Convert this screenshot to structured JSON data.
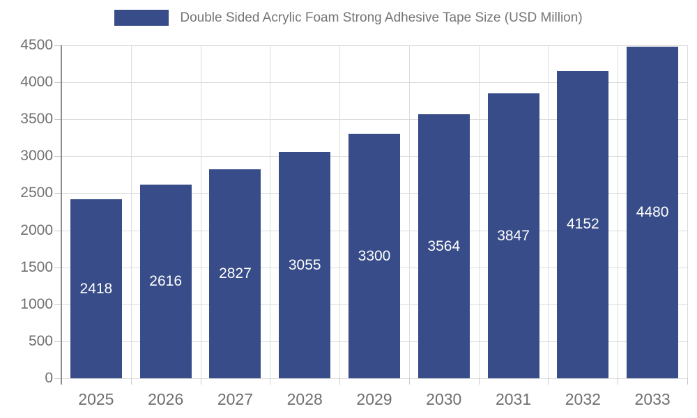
{
  "legend": {
    "label": "Double Sided Acrylic Foam Strong Adhesive Tape Size (USD Million)"
  },
  "chart_data": {
    "type": "bar",
    "title": "Double Sided Acrylic Foam Strong Adhesive Tape Size (USD Million)",
    "categories": [
      "2025",
      "2026",
      "2027",
      "2028",
      "2029",
      "2030",
      "2031",
      "2032",
      "2033"
    ],
    "values": [
      2418,
      2616,
      2827,
      3055,
      3300,
      3564,
      3847,
      4152,
      4480
    ],
    "value_labels": [
      "2418",
      "2616",
      "2827",
      "3055",
      "3300",
      "3564",
      "3847",
      "4152",
      "4480"
    ],
    "xlabel": "",
    "ylabel": "",
    "ylim": [
      0,
      4500
    ],
    "yticks": [
      0,
      500,
      1000,
      1500,
      2000,
      2500,
      3000,
      3500,
      4000,
      4500
    ],
    "ytick_labels": [
      "0",
      "500",
      "1000",
      "1500",
      "2000",
      "2500",
      "3000",
      "3500",
      "4000",
      "4500"
    ],
    "grid": true,
    "legend_position": "top"
  },
  "colors": {
    "bar_fill": "#374C88",
    "value_label": "#ffffff",
    "gridline": "#dcdcdc",
    "axis_line": "#8c8c8c",
    "tick_label": "#6f6f6f",
    "legend_text": "#757575",
    "background": "#ffffff"
  }
}
